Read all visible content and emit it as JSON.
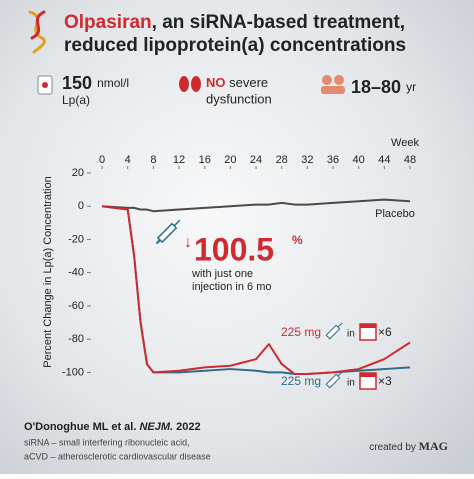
{
  "header": {
    "title_highlight": "Olpasiran",
    "title_line1_rest": ", an siRNA-based treatment,",
    "title_line2": "reduced lipoprotein(a) concentrations"
  },
  "stats": [
    {
      "value": "150",
      "unit": "nmol/l",
      "label": "Lp(a)"
    },
    {
      "highlight": "NO",
      "text": "severe",
      "label": "dysfunction"
    },
    {
      "value": "18–80",
      "unit": "yr"
    }
  ],
  "chart_data": {
    "type": "line",
    "x_label": "Week",
    "y_label": "Percent Change in Lp(a) Concentration",
    "x": [
      0,
      4,
      5,
      6,
      7,
      8,
      12,
      16,
      20,
      24,
      26,
      28,
      30,
      32,
      36,
      40,
      44,
      48
    ],
    "xlim": [
      -5,
      48
    ],
    "xticks": [
      0,
      4,
      8,
      12,
      16,
      20,
      24,
      28,
      32,
      36,
      40,
      44,
      48
    ],
    "ylim": [
      -110,
      20
    ],
    "yticks": [
      20,
      0,
      -20,
      -40,
      -60,
      -80,
      -100
    ],
    "series": [
      {
        "name": "Placebo",
        "color": "#4a4a4a",
        "values": [
          0,
          -1,
          -1,
          -2,
          -2,
          -3,
          -2,
          -1,
          0,
          1,
          1,
          2,
          1,
          1,
          2,
          3,
          4,
          3
        ]
      },
      {
        "name": "225 mg",
        "color": "#2c6d89",
        "values": [
          0,
          -2,
          -30,
          -70,
          -95,
          -100,
          -100,
          -99,
          -98,
          -99,
          -100,
          -100,
          -101,
          -101,
          -100,
          -99,
          -98,
          -97
        ]
      },
      {
        "name": "225 mg",
        "color": "#cf2a2f",
        "values": [
          0,
          -2,
          -30,
          -70,
          -95,
          -100,
          -99,
          -97,
          -96,
          -92,
          -83,
          -95,
          -101,
          -101,
          -100,
          -98,
          -92,
          -82
        ]
      }
    ],
    "annotations": {
      "arrow": "↓",
      "reduction": "100.5",
      "unit": "%",
      "note_line1": "with just one",
      "note_line2": "injection in 6 mo",
      "in_red": "in",
      "times_red": "×6",
      "in_blue": "in",
      "times_blue": "×3"
    }
  },
  "footer": {
    "citation_a": "O'Donoghue ML et al. ",
    "citation_b": "NEJM.",
    "citation_c": " 2022",
    "abbr1": "siRNA – small interfering ribonucleic acid,",
    "abbr2": "aCVD – atherosclerotic cardiovascular disease",
    "credit_a": "created by ",
    "credit_b": "MAG"
  }
}
